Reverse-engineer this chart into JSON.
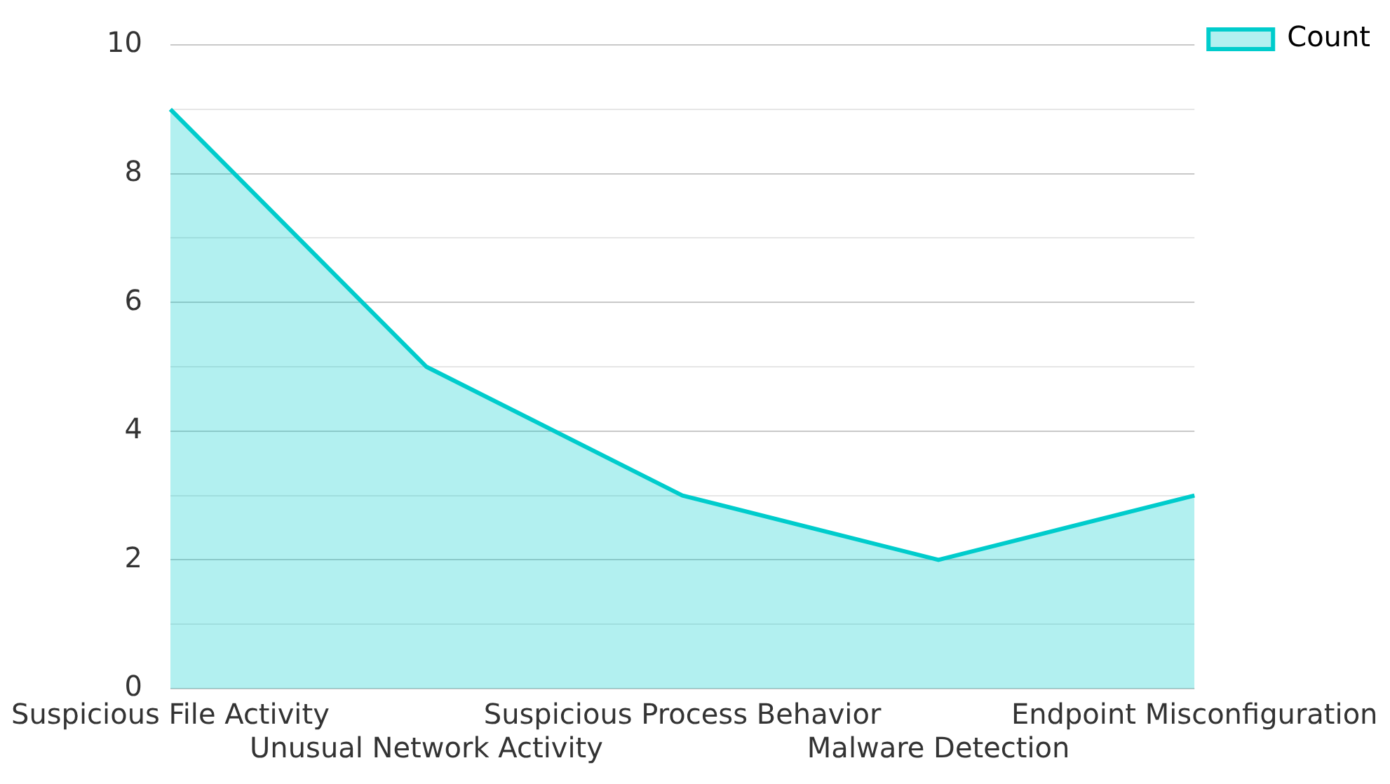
{
  "chart_data": {
    "type": "area",
    "categories": [
      "Suspicious File Activity",
      "Unusual Network Activity",
      "Suspicious Process Behavior",
      "Malware Detection",
      "Endpoint Misconfiguration"
    ],
    "series": [
      {
        "name": "Count",
        "color": "#00cccc",
        "values": [
          9,
          5,
          3,
          2,
          3
        ]
      }
    ],
    "ylim": [
      0,
      10
    ],
    "yticks": [
      0,
      {
        "value": 1,
        "label": null
      },
      2,
      {
        "value": 3,
        "label": null
      },
      4,
      {
        "value": 5,
        "label": null
      },
      6,
      {
        "value": 7,
        "label": null
      },
      8,
      {
        "value": 9,
        "label": null
      },
      10
    ],
    "grid": "y",
    "legend": "top right",
    "marker": "none"
  }
}
